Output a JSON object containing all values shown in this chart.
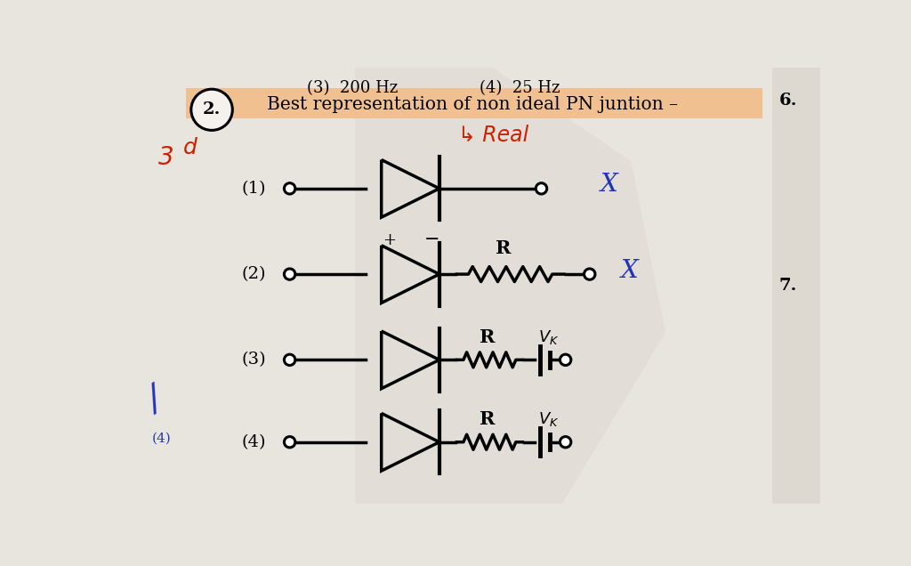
{
  "title_text": "Best representation of non ideal PN juntion –",
  "subtitle_handwritten": "↳ Real",
  "question_num": "2.",
  "bg_color": "#e8e4de",
  "paper_color": "#f5f2ee",
  "title_highlight": "#f0c090",
  "label1": "(1)",
  "label2": "(2)",
  "label3": "(3)",
  "label4": "(4)",
  "R_label": "R",
  "VK_label": "V_K",
  "plus_label": "+",
  "minus_label": "−",
  "header_left": "(3)  200 Hz",
  "header_right": "(4)  25 Hz",
  "right_num1": "6.",
  "right_num2": "7.",
  "x_mark": "X",
  "shadow_color": "#c8c0b0"
}
